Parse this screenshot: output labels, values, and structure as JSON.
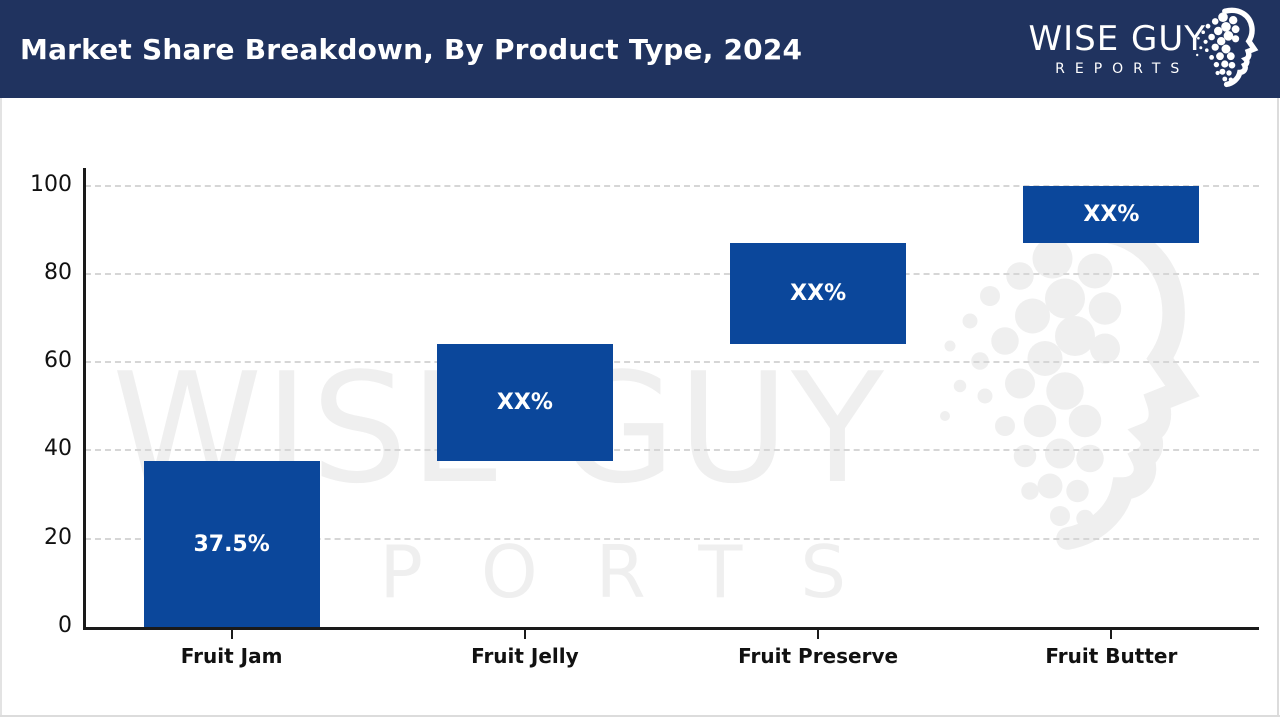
{
  "header": {
    "title": "Market Share Breakdown, By Product Type, 2024",
    "logo": {
      "line1": "WISE GUY",
      "line2": "REPORTS"
    }
  },
  "watermark": {
    "line1": "WISE GUY",
    "line2": "REPORTS"
  },
  "colors": {
    "header_bg": "#20335f",
    "bar": "#0b479b",
    "bar_label": "#ffffff",
    "gridline": "#d6d6d6",
    "axis": "#1a1a1a",
    "tick_text": "#111111",
    "watermark": "#efefef"
  },
  "chart_data": {
    "type": "bar",
    "subtype": "waterfall",
    "title": "Market Share Breakdown, By Product Type, 2024",
    "xlabel": "",
    "ylabel": "",
    "ylim": [
      0,
      100
    ],
    "yticks": [
      0,
      20,
      40,
      60,
      80,
      100
    ],
    "grid": "horizontal-dashed",
    "legend": "none",
    "categories": [
      "Fruit Jam",
      "Fruit Jelly",
      "Fruit Preserve",
      "Fruit Butter"
    ],
    "segments": [
      {
        "category": "Fruit Jam",
        "start": 0,
        "end": 37.5,
        "label": "37.5%"
      },
      {
        "category": "Fruit Jelly",
        "start": 37.5,
        "end": 64,
        "label": "XX%"
      },
      {
        "category": "Fruit Preserve",
        "start": 64,
        "end": 87,
        "label": "XX%"
      },
      {
        "category": "Fruit Butter",
        "start": 87,
        "end": 100,
        "label": "XX%"
      }
    ]
  }
}
